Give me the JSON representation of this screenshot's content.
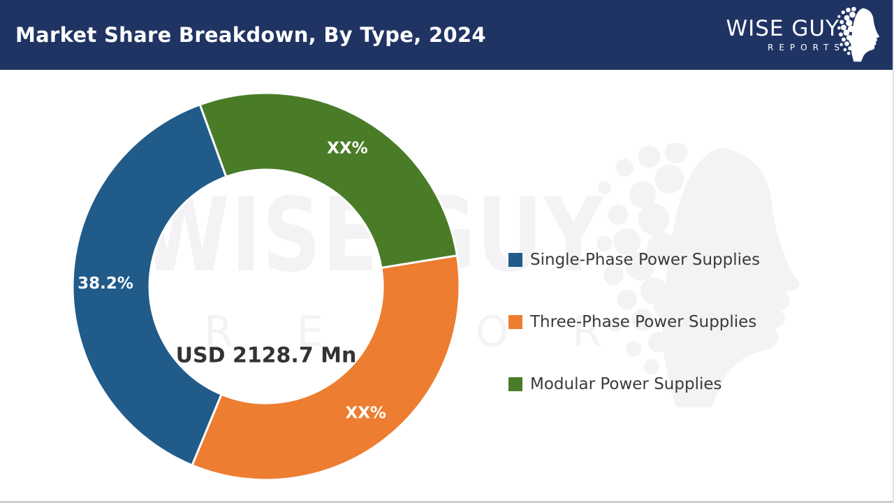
{
  "header": {
    "title": "Market Share Breakdown, By Type, 2024",
    "bg_color": "#203464",
    "logo": {
      "name": "WISE GUY",
      "sub": "REPORTS"
    }
  },
  "watermark": {
    "name": "WISE GUY",
    "sub": "R E P O R T S"
  },
  "chart_data": {
    "type": "pie",
    "donut": true,
    "title": "Market Share Breakdown, By Type, 2024",
    "center_label": "USD 2128.7 Mn",
    "start_angle_deg": 110,
    "direction": "counterclockwise",
    "legend_position": "right",
    "categories": [
      "Single-Phase Power Supplies",
      "Three-Phase Power Supplies",
      "Modular Power Supplies"
    ],
    "values": [
      38.2,
      33.8,
      28.0
    ],
    "slice_labels": [
      "38.2%",
      "XX%",
      "XX%"
    ],
    "colors": [
      "#205b8a",
      "#ed7d31",
      "#4a7c28"
    ]
  }
}
